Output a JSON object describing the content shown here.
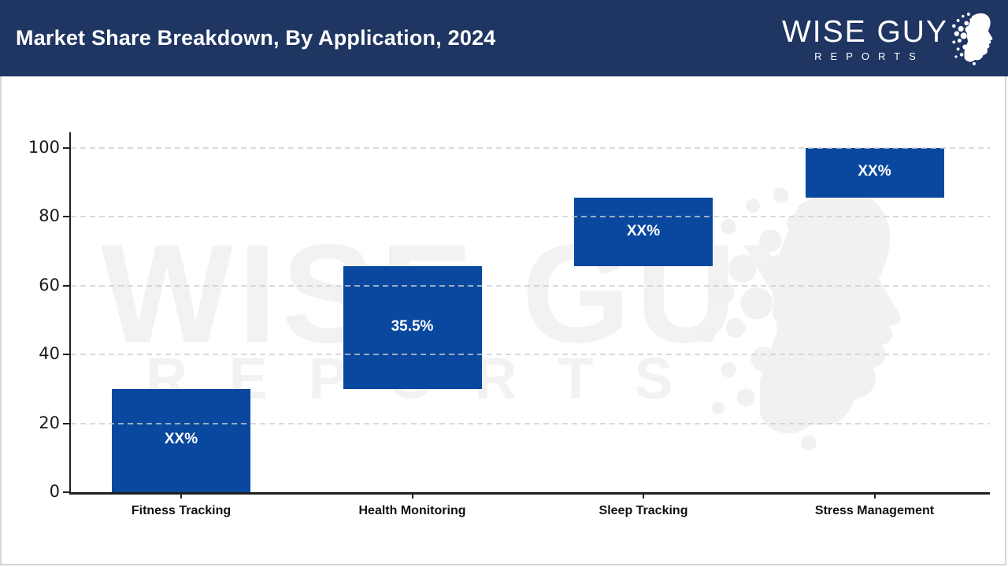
{
  "header": {
    "title": "Market Share Breakdown, By Application, 2024",
    "bg_color": "#1f3562",
    "logo": {
      "line1": "WISE GUY",
      "line2": "REPORTS"
    }
  },
  "watermark": {
    "line1": "WISE GUY",
    "line2": "REPORTS"
  },
  "chart_data": {
    "type": "bar",
    "subtype": "waterfall",
    "title": "Market Share Breakdown, By Application, 2024",
    "categories": [
      "Fitness Tracking",
      "Health Monitoring",
      "Sleep Tracking",
      "Stress Management"
    ],
    "segments": [
      {
        "category": "Fitness Tracking",
        "start": 0,
        "end": 30,
        "label": "XX%"
      },
      {
        "category": "Health Monitoring",
        "start": 30,
        "end": 65.5,
        "label": "35.5%"
      },
      {
        "category": "Sleep Tracking",
        "start": 65.5,
        "end": 85.5,
        "label": "XX%"
      },
      {
        "category": "Stress Management",
        "start": 85.5,
        "end": 100,
        "label": "XX%"
      }
    ],
    "y_ticks": [
      0,
      20,
      40,
      60,
      80,
      100
    ],
    "ylim": [
      0,
      105
    ],
    "xlabel": "",
    "ylabel": "",
    "bar_color": "#09489e",
    "value_label_color": "#ffffff",
    "grid": "horizontal-dashed",
    "legend": "none"
  }
}
